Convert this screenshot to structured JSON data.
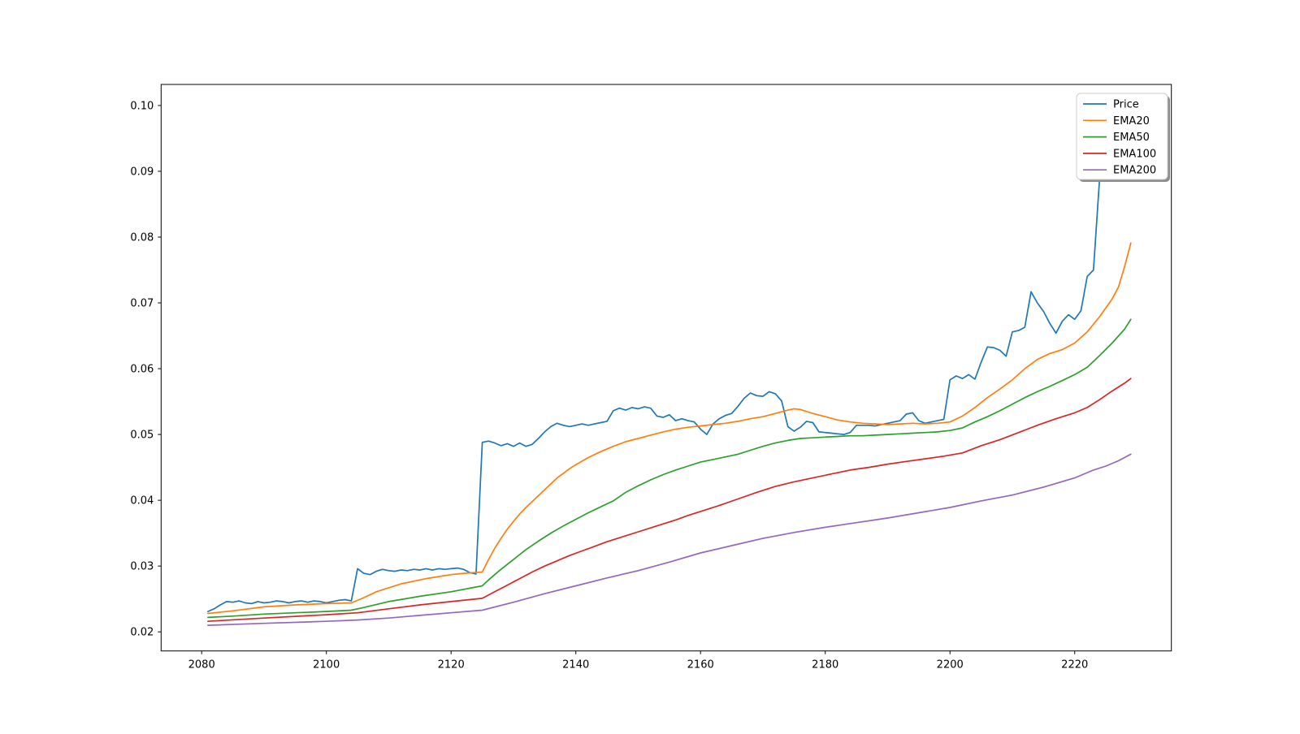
{
  "figure": {
    "background": "#ffffff",
    "plot_bg": "#ffffff",
    "spine_color": "#000000"
  },
  "legend": {
    "position": "upper right",
    "face_color": "#ffffff",
    "edge_color": "#cccccc",
    "shadow_color": "#8c8c8c",
    "entries": [
      {
        "label": "Price",
        "color": "#1f77b4"
      },
      {
        "label": "EMA20",
        "color": "#ff7f0e"
      },
      {
        "label": "EMA50",
        "color": "#2ca02c"
      },
      {
        "label": "EMA100",
        "color": "#d62728"
      },
      {
        "label": "EMA200",
        "color": "#9467bd"
      }
    ]
  },
  "chart_data": {
    "type": "line",
    "title": "",
    "xlabel": "",
    "ylabel": "",
    "grid": false,
    "xlim": [
      2073.5,
      2235.5
    ],
    "ylim": [
      0.0171,
      0.1032
    ],
    "x_tick_values": [
      2080,
      2100,
      2120,
      2140,
      2160,
      2180,
      2200,
      2220
    ],
    "x_tick_labels": [
      "2080",
      "2100",
      "2120",
      "2140",
      "2160",
      "2180",
      "2200",
      "2220"
    ],
    "y_tick_values": [
      0.02,
      0.03,
      0.04,
      0.05,
      0.06,
      0.07,
      0.08,
      0.09,
      0.1
    ],
    "y_tick_labels": [
      "0.02",
      "0.03",
      "0.04",
      "0.05",
      "0.06",
      "0.07",
      "0.08",
      "0.09",
      "0.10"
    ],
    "series": [
      {
        "name": "Price",
        "color": "#1f77b4",
        "x_start": 2081,
        "x_step": 1,
        "y": [
          0.0231,
          0.0235,
          0.0241,
          0.0246,
          0.0245,
          0.0247,
          0.0244,
          0.0243,
          0.0246,
          0.0244,
          0.0245,
          0.0247,
          0.0246,
          0.0244,
          0.0246,
          0.0247,
          0.0245,
          0.0247,
          0.0246,
          0.0244,
          0.0246,
          0.0248,
          0.0249,
          0.0247,
          0.0296,
          0.0289,
          0.0287,
          0.0292,
          0.0295,
          0.0293,
          0.0292,
          0.0294,
          0.0293,
          0.0295,
          0.0294,
          0.0296,
          0.0294,
          0.0296,
          0.0295,
          0.0296,
          0.0297,
          0.0295,
          0.029,
          0.0288,
          0.0488,
          0.049,
          0.0487,
          0.0483,
          0.0486,
          0.0482,
          0.0487,
          0.0482,
          0.0485,
          0.0494,
          0.0504,
          0.0512,
          0.0517,
          0.0514,
          0.0512,
          0.0514,
          0.0516,
          0.0514,
          0.0516,
          0.0518,
          0.052,
          0.0536,
          0.054,
          0.0537,
          0.0541,
          0.0539,
          0.0542,
          0.054,
          0.0528,
          0.0526,
          0.053,
          0.0521,
          0.0524,
          0.0521,
          0.0519,
          0.0508,
          0.05,
          0.0516,
          0.0524,
          0.0529,
          0.0532,
          0.0543,
          0.0555,
          0.0563,
          0.0559,
          0.0558,
          0.0565,
          0.0562,
          0.0551,
          0.0512,
          0.0505,
          0.0511,
          0.052,
          0.0518,
          0.0504,
          0.0503,
          0.0502,
          0.0501,
          0.05,
          0.0503,
          0.0514,
          0.0514,
          0.0514,
          0.0513,
          0.0515,
          0.0517,
          0.0519,
          0.0521,
          0.0531,
          0.0533,
          0.0521,
          0.0517,
          0.0519,
          0.0521,
          0.0523,
          0.0583,
          0.0589,
          0.0585,
          0.0591,
          0.0584,
          0.061,
          0.0633,
          0.0632,
          0.0628,
          0.0619,
          0.0656,
          0.0658,
          0.0663,
          0.0717,
          0.07,
          0.0687,
          0.0669,
          0.0654,
          0.0672,
          0.0682,
          0.0675,
          0.0688,
          0.074,
          0.075,
          0.089,
          0.095,
          0.099,
          0.0975,
          0.0985,
          0.099
        ]
      },
      {
        "name": "EMA20",
        "color": "#ff7f0e",
        "points": [
          [
            2081,
            0.0228
          ],
          [
            2085,
            0.0232
          ],
          [
            2090,
            0.0238
          ],
          [
            2095,
            0.0241
          ],
          [
            2100,
            0.0243
          ],
          [
            2104,
            0.0244
          ],
          [
            2106,
            0.0252
          ],
          [
            2108,
            0.0261
          ],
          [
            2110,
            0.0267
          ],
          [
            2112,
            0.0273
          ],
          [
            2114,
            0.0277
          ],
          [
            2116,
            0.0281
          ],
          [
            2118,
            0.0284
          ],
          [
            2120,
            0.0287
          ],
          [
            2122,
            0.0289
          ],
          [
            2125,
            0.0291
          ],
          [
            2126,
            0.031
          ],
          [
            2127,
            0.0327
          ],
          [
            2128,
            0.0342
          ],
          [
            2129,
            0.0356
          ],
          [
            2130,
            0.0368
          ],
          [
            2131,
            0.0379
          ],
          [
            2132,
            0.0389
          ],
          [
            2133,
            0.0398
          ],
          [
            2134,
            0.0407
          ],
          [
            2135,
            0.0416
          ],
          [
            2136,
            0.0425
          ],
          [
            2137,
            0.0434
          ],
          [
            2138,
            0.0441
          ],
          [
            2139,
            0.0448
          ],
          [
            2140,
            0.0454
          ],
          [
            2142,
            0.0465
          ],
          [
            2144,
            0.0474
          ],
          [
            2146,
            0.0482
          ],
          [
            2148,
            0.0489
          ],
          [
            2150,
            0.0494
          ],
          [
            2152,
            0.0499
          ],
          [
            2154,
            0.0504
          ],
          [
            2156,
            0.0508
          ],
          [
            2158,
            0.0511
          ],
          [
            2160,
            0.0513
          ],
          [
            2162,
            0.0515
          ],
          [
            2164,
            0.0517
          ],
          [
            2166,
            0.052
          ],
          [
            2168,
            0.0524
          ],
          [
            2170,
            0.0527
          ],
          [
            2172,
            0.0532
          ],
          [
            2174,
            0.0537
          ],
          [
            2175,
            0.0539
          ],
          [
            2176,
            0.0538
          ],
          [
            2178,
            0.0532
          ],
          [
            2180,
            0.0527
          ],
          [
            2182,
            0.0522
          ],
          [
            2184,
            0.0519
          ],
          [
            2186,
            0.0517
          ],
          [
            2188,
            0.0516
          ],
          [
            2190,
            0.0515
          ],
          [
            2192,
            0.0516
          ],
          [
            2194,
            0.0517
          ],
          [
            2196,
            0.0516
          ],
          [
            2198,
            0.0517
          ],
          [
            2200,
            0.0519
          ],
          [
            2202,
            0.0528
          ],
          [
            2204,
            0.0541
          ],
          [
            2206,
            0.0556
          ],
          [
            2208,
            0.0569
          ],
          [
            2210,
            0.0583
          ],
          [
            2212,
            0.06
          ],
          [
            2214,
            0.0614
          ],
          [
            2216,
            0.0623
          ],
          [
            2218,
            0.0629
          ],
          [
            2220,
            0.0639
          ],
          [
            2222,
            0.0656
          ],
          [
            2224,
            0.0679
          ],
          [
            2226,
            0.0706
          ],
          [
            2227,
            0.0724
          ],
          [
            2228,
            0.0755
          ],
          [
            2229,
            0.0791
          ]
        ]
      },
      {
        "name": "EMA50",
        "color": "#2ca02c",
        "points": [
          [
            2081,
            0.0222
          ],
          [
            2085,
            0.0224
          ],
          [
            2090,
            0.0227
          ],
          [
            2095,
            0.0229
          ],
          [
            2100,
            0.0231
          ],
          [
            2104,
            0.0233
          ],
          [
            2106,
            0.0237
          ],
          [
            2110,
            0.0246
          ],
          [
            2115,
            0.0254
          ],
          [
            2120,
            0.0261
          ],
          [
            2125,
            0.027
          ],
          [
            2126,
            0.0279
          ],
          [
            2128,
            0.0295
          ],
          [
            2130,
            0.031
          ],
          [
            2132,
            0.0325
          ],
          [
            2134,
            0.0338
          ],
          [
            2136,
            0.035
          ],
          [
            2138,
            0.0361
          ],
          [
            2140,
            0.0371
          ],
          [
            2142,
            0.0381
          ],
          [
            2144,
            0.039
          ],
          [
            2146,
            0.0399
          ],
          [
            2148,
            0.0412
          ],
          [
            2150,
            0.0422
          ],
          [
            2152,
            0.0431
          ],
          [
            2154,
            0.0439
          ],
          [
            2156,
            0.0446
          ],
          [
            2158,
            0.0452
          ],
          [
            2160,
            0.0458
          ],
          [
            2162,
            0.0462
          ],
          [
            2164,
            0.0466
          ],
          [
            2166,
            0.047
          ],
          [
            2168,
            0.0476
          ],
          [
            2170,
            0.0482
          ],
          [
            2172,
            0.0487
          ],
          [
            2174,
            0.0491
          ],
          [
            2176,
            0.0494
          ],
          [
            2178,
            0.0495
          ],
          [
            2180,
            0.0496
          ],
          [
            2182,
            0.0497
          ],
          [
            2184,
            0.0498
          ],
          [
            2186,
            0.0498
          ],
          [
            2188,
            0.0499
          ],
          [
            2190,
            0.05
          ],
          [
            2192,
            0.0501
          ],
          [
            2194,
            0.0502
          ],
          [
            2196,
            0.0503
          ],
          [
            2198,
            0.0504
          ],
          [
            2200,
            0.0506
          ],
          [
            2202,
            0.051
          ],
          [
            2204,
            0.0519
          ],
          [
            2206,
            0.0527
          ],
          [
            2208,
            0.0536
          ],
          [
            2210,
            0.0546
          ],
          [
            2212,
            0.0556
          ],
          [
            2214,
            0.0565
          ],
          [
            2216,
            0.0573
          ],
          [
            2218,
            0.0582
          ],
          [
            2220,
            0.0591
          ],
          [
            2222,
            0.0602
          ],
          [
            2224,
            0.062
          ],
          [
            2226,
            0.0639
          ],
          [
            2228,
            0.066
          ],
          [
            2229,
            0.0675
          ]
        ]
      },
      {
        "name": "EMA100",
        "color": "#d62728",
        "points": [
          [
            2081,
            0.0216
          ],
          [
            2090,
            0.0221
          ],
          [
            2100,
            0.0226
          ],
          [
            2105,
            0.0229
          ],
          [
            2110,
            0.0235
          ],
          [
            2115,
            0.0241
          ],
          [
            2120,
            0.0246
          ],
          [
            2125,
            0.0251
          ],
          [
            2127,
            0.0261
          ],
          [
            2129,
            0.0271
          ],
          [
            2131,
            0.0281
          ],
          [
            2133,
            0.0291
          ],
          [
            2135,
            0.03
          ],
          [
            2137,
            0.0308
          ],
          [
            2139,
            0.0316
          ],
          [
            2141,
            0.0323
          ],
          [
            2143,
            0.033
          ],
          [
            2145,
            0.0337
          ],
          [
            2147,
            0.0343
          ],
          [
            2150,
            0.0352
          ],
          [
            2153,
            0.0361
          ],
          [
            2156,
            0.037
          ],
          [
            2158,
            0.0377
          ],
          [
            2160,
            0.0383
          ],
          [
            2163,
            0.0392
          ],
          [
            2166,
            0.0402
          ],
          [
            2169,
            0.0412
          ],
          [
            2172,
            0.0421
          ],
          [
            2175,
            0.0428
          ],
          [
            2178,
            0.0434
          ],
          [
            2181,
            0.044
          ],
          [
            2184,
            0.0446
          ],
          [
            2187,
            0.045
          ],
          [
            2190,
            0.0455
          ],
          [
            2193,
            0.0459
          ],
          [
            2196,
            0.0463
          ],
          [
            2199,
            0.0467
          ],
          [
            2202,
            0.0472
          ],
          [
            2205,
            0.0483
          ],
          [
            2208,
            0.0492
          ],
          [
            2211,
            0.0503
          ],
          [
            2214,
            0.0514
          ],
          [
            2217,
            0.0524
          ],
          [
            2220,
            0.0533
          ],
          [
            2222,
            0.0541
          ],
          [
            2224,
            0.0553
          ],
          [
            2226,
            0.0566
          ],
          [
            2228,
            0.0578
          ],
          [
            2229,
            0.0585
          ]
        ]
      },
      {
        "name": "EMA200",
        "color": "#9467bd",
        "points": [
          [
            2081,
            0.021
          ],
          [
            2090,
            0.0213
          ],
          [
            2100,
            0.0216
          ],
          [
            2105,
            0.0218
          ],
          [
            2110,
            0.0221
          ],
          [
            2115,
            0.0225
          ],
          [
            2120,
            0.0229
          ],
          [
            2125,
            0.0233
          ],
          [
            2130,
            0.0245
          ],
          [
            2135,
            0.0258
          ],
          [
            2140,
            0.027
          ],
          [
            2145,
            0.0282
          ],
          [
            2150,
            0.0293
          ],
          [
            2155,
            0.0306
          ],
          [
            2160,
            0.032
          ],
          [
            2165,
            0.0331
          ],
          [
            2170,
            0.0342
          ],
          [
            2175,
            0.0351
          ],
          [
            2180,
            0.0359
          ],
          [
            2185,
            0.0366
          ],
          [
            2190,
            0.0373
          ],
          [
            2195,
            0.0381
          ],
          [
            2200,
            0.0389
          ],
          [
            2205,
            0.0399
          ],
          [
            2210,
            0.0408
          ],
          [
            2215,
            0.042
          ],
          [
            2220,
            0.0434
          ],
          [
            2223,
            0.0446
          ],
          [
            2225,
            0.0452
          ],
          [
            2227,
            0.046
          ],
          [
            2229,
            0.047
          ]
        ]
      }
    ]
  }
}
